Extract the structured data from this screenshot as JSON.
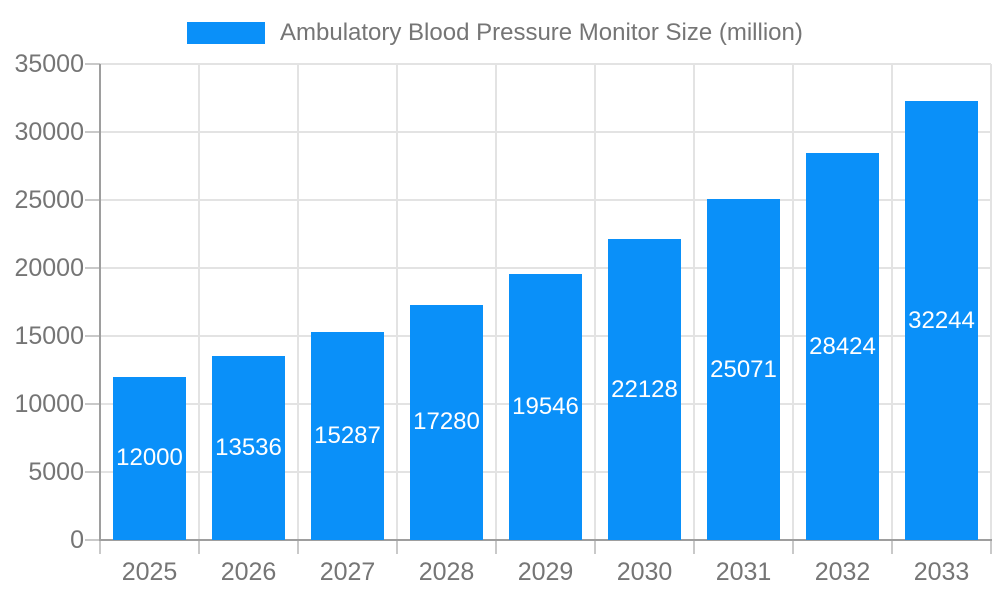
{
  "chart_data": {
    "type": "bar",
    "categories": [
      "2025",
      "2026",
      "2027",
      "2028",
      "2029",
      "2030",
      "2031",
      "2032",
      "2033"
    ],
    "series": [
      {
        "name": "Ambulatory Blood Pressure Monitor Size (million)",
        "values": [
          12000,
          13536,
          15287,
          17280,
          19546,
          22128,
          25071,
          28424,
          32244
        ]
      }
    ],
    "bar_value_labels": [
      "12000",
      "13536",
      "15287",
      "17280",
      "19546",
      "22128",
      "25071",
      "28424",
      "32244"
    ],
    "xlabel": "",
    "ylabel": "",
    "ylim": [
      0,
      35000
    ],
    "ytick_step": 5000,
    "ytick_labels": [
      "0",
      "5000",
      "10000",
      "15000",
      "20000",
      "25000",
      "30000",
      "35000"
    ],
    "grid": true,
    "legend_position": "top",
    "bar_label_position": "inside-center",
    "colors": {
      "bar": "#0a90f9",
      "bar_label": "#ffffff",
      "axis_text": "#757575",
      "legend_text": "#757575",
      "grid_line": "#e3e3e3",
      "axis_line": "#9e9e9e",
      "tick": "#c9c9c9"
    }
  }
}
